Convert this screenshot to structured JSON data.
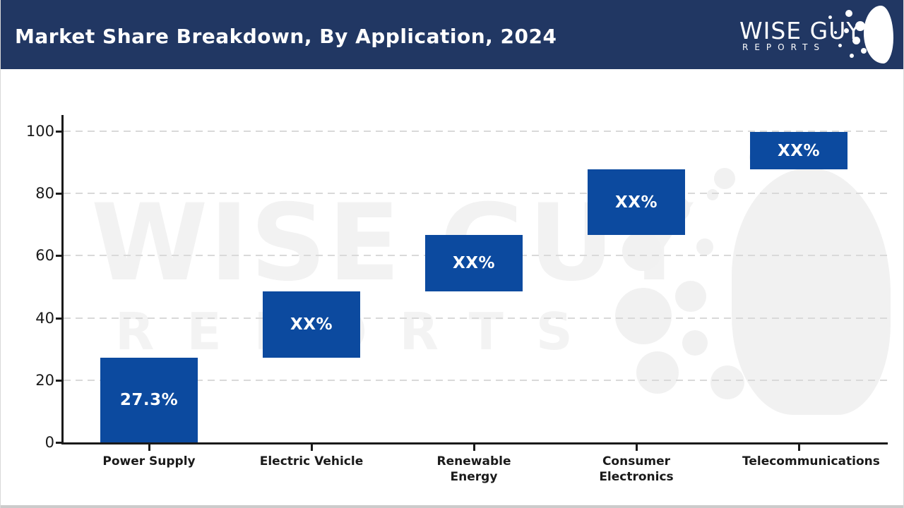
{
  "header": {
    "title": "Market Share Breakdown, By Application, 2024",
    "background_color": "#213763",
    "logo": {
      "line1": "WISE GUY",
      "line2": "REPORTS"
    }
  },
  "watermark": {
    "line1": "WISE GUY",
    "line2": "REPORTS"
  },
  "chart_data": {
    "type": "bar",
    "subtype": "floating-waterfall",
    "title": "Market Share Breakdown, By Application, 2024",
    "categories": [
      "Power Supply",
      "Electric Vehicle",
      "Renewable Energy",
      "Consumer Electronics",
      "Telecommunications"
    ],
    "bar_labels": [
      "27.3%",
      "XX%",
      "XX%",
      "XX%",
      "XX%"
    ],
    "segments": [
      [
        0,
        27.3
      ],
      [
        27.3,
        48.5
      ],
      [
        48.5,
        66.6
      ],
      [
        66.6,
        87.8
      ],
      [
        87.8,
        99.7
      ]
    ],
    "values_estimated": [
      27.3,
      21.2,
      18.1,
      21.2,
      11.9
    ],
    "y_ticks": [
      0,
      20,
      40,
      60,
      80,
      100
    ],
    "ylim": [
      0,
      105
    ],
    "xlabel": "",
    "ylabel": "",
    "grid": "dashed-horizontal",
    "legend": "none",
    "bar_color": "#0c4a9f",
    "bar_label_color": "#ffffff",
    "axis_color": "#1a1a1a"
  }
}
